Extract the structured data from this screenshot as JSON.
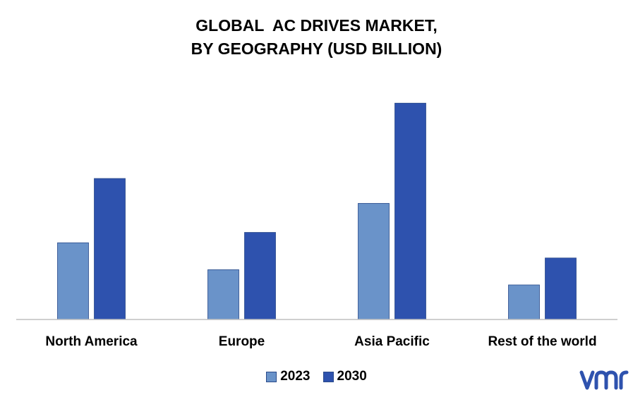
{
  "chart_data": {
    "type": "bar",
    "title_lines": [
      "GLOBAL  AC DRIVES MARKET,",
      "BY GEOGRAPHY (USD BILLION)"
    ],
    "categories": [
      "North America",
      "Europe",
      "Asia Pacific",
      "Rest of the world"
    ],
    "series": [
      {
        "name": "2023",
        "color": "#6a93c9",
        "values": [
          11.1,
          7.2,
          16.8,
          5.0
        ]
      },
      {
        "name": "2030",
        "color": "#2e52ae",
        "values": [
          20.4,
          12.6,
          31.3,
          8.9
        ]
      }
    ],
    "ylim": [
      0,
      35
    ],
    "grid": false,
    "legend_position": "bottom-center"
  },
  "logo": {
    "name": "vmr-logo",
    "text": "vmr",
    "color": "#2e52ae"
  }
}
